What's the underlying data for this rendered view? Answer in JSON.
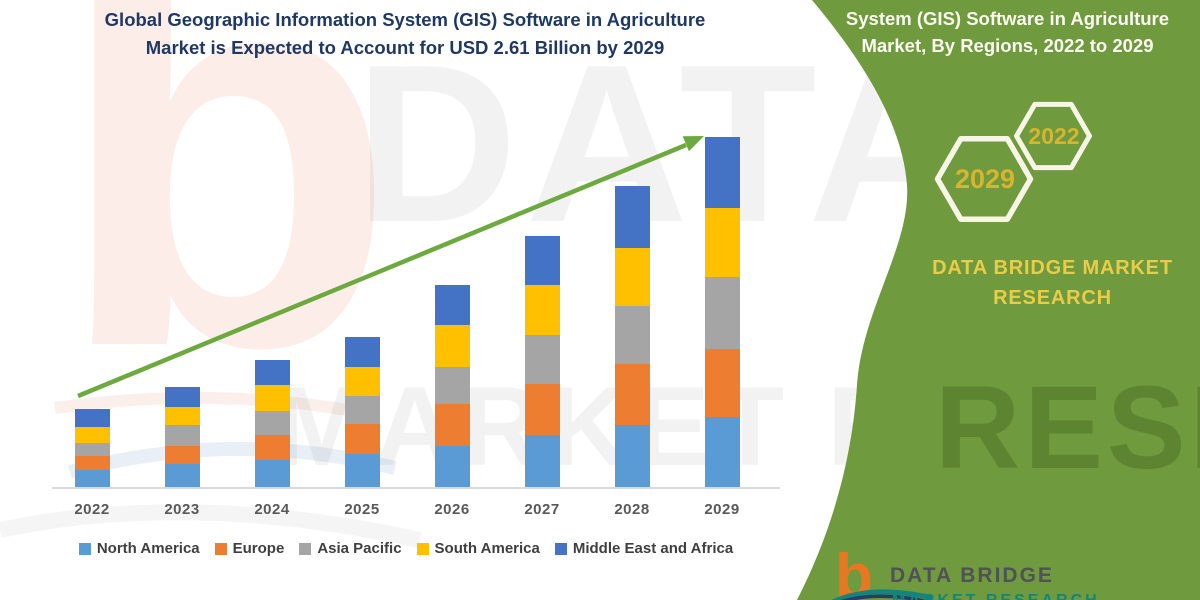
{
  "header": {
    "left_title_line1": "Global Geographic Information System (GIS) Software in Agriculture",
    "left_title_line2": "Market is Expected to Account for USD 2.61 Billion by 2029",
    "right_title_line1": "System (GIS) Software in Agriculture",
    "right_title_line2": "Market, By Regions, 2022 to 2029"
  },
  "side_panel": {
    "background_color": "#6F9A3D",
    "hexagons": [
      {
        "label": "2029"
      },
      {
        "label": "2022"
      }
    ],
    "hexagon_border_color": "#F7F5E6",
    "year_text_color": "#D9B42F",
    "brand_text_line1": "DATA BRIDGE MARKET",
    "brand_text_line2": "RESEARCH",
    "brand_text_color": "#E9CD49"
  },
  "footer_logo": {
    "b_glyph": "b",
    "b_color": "#E87722",
    "brand": "DATA BRIDGE",
    "sub_brand": "MARKET RESEARCH"
  },
  "watermark": {
    "big_b": "b",
    "text1": "DATA BRIDGE",
    "text2": "MARKET RESEARCH",
    "text3": "RESEARCH"
  },
  "chart_data": {
    "type": "bar",
    "stacked": true,
    "title": "Global Geographic Information System (GIS) Software in Agriculture Market is Expected to Account for USD 2.61 Billion by 2029",
    "unit": "USD Billion",
    "highlight_value_2029": "USD 2.61 Billion",
    "categories": [
      "2022",
      "2023",
      "2024",
      "2025",
      "2026",
      "2027",
      "2028",
      "2029"
    ],
    "series": [
      {
        "name": "North America",
        "color": "#5B9BD5",
        "values": [
          0.13,
          0.17,
          0.2,
          0.25,
          0.31,
          0.39,
          0.46,
          0.52
        ]
      },
      {
        "name": "Europe",
        "color": "#ED7D31",
        "values": [
          0.1,
          0.14,
          0.19,
          0.22,
          0.31,
          0.38,
          0.46,
          0.51
        ]
      },
      {
        "name": "Asia Pacific",
        "color": "#A5A5A5",
        "values": [
          0.1,
          0.15,
          0.18,
          0.21,
          0.28,
          0.37,
          0.43,
          0.54
        ]
      },
      {
        "name": "South America",
        "color": "#FFC000",
        "values": [
          0.12,
          0.14,
          0.19,
          0.22,
          0.31,
          0.37,
          0.44,
          0.52
        ]
      },
      {
        "name": "Middle East and Africa",
        "color": "#4472C4",
        "values": [
          0.13,
          0.15,
          0.19,
          0.22,
          0.3,
          0.37,
          0.46,
          0.53
        ]
      }
    ],
    "totals_estimated": [
      0.58,
      0.76,
      0.95,
      1.13,
      1.52,
      1.88,
      2.25,
      2.61
    ],
    "xlabel": "",
    "ylabel": "",
    "y_axis_visible": false,
    "gridlines": false,
    "legend_position": "bottom",
    "trend_arrow": true,
    "trend_arrow_color": "#6CA93F"
  }
}
